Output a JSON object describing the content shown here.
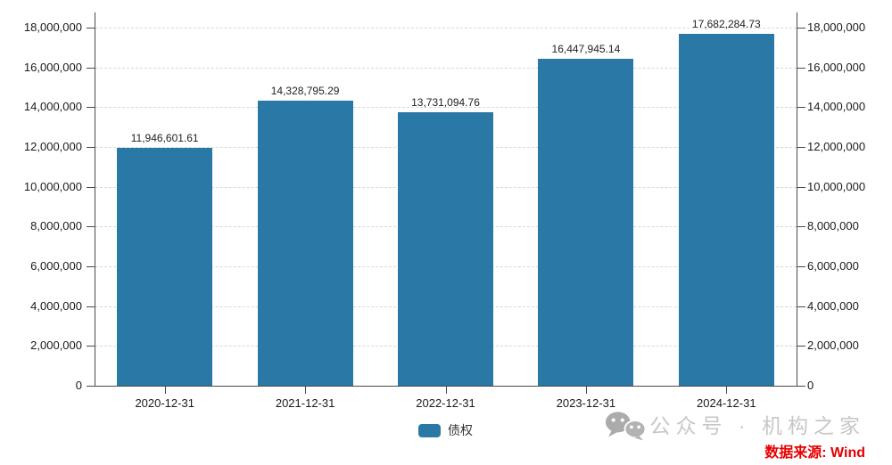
{
  "chart_data": {
    "type": "bar",
    "title": "",
    "categories": [
      "2020-12-31",
      "2021-12-31",
      "2022-12-31",
      "2023-12-31",
      "2024-12-31"
    ],
    "series": [
      {
        "name": "债权",
        "values": [
          11946601.61,
          14328795.29,
          13731094.76,
          16447945.14,
          17682284.73
        ],
        "value_labels": [
          "11,946,601.61",
          "14,328,795.29",
          "13,731,094.76",
          "16,447,945.14",
          "17,682,284.73"
        ],
        "color": "#2A78A5"
      }
    ],
    "xlabel": "",
    "ylabel": "",
    "ylim": [
      0,
      18000000
    ],
    "y_ticks": [
      0,
      2000000,
      4000000,
      6000000,
      8000000,
      10000000,
      12000000,
      14000000,
      16000000,
      18000000
    ],
    "y_tick_labels": [
      "0",
      "2,000,000",
      "4,000,000",
      "6,000,000",
      "8,000,000",
      "10,000,000",
      "12,000,000",
      "14,000,000",
      "16,000,000",
      "18,000,000"
    ],
    "grid": "horizontal-dashed",
    "dual_y_axis": true,
    "legend_position": "bottom-center"
  },
  "legend": {
    "label": "债权",
    "swatch_color": "#2A78A5"
  },
  "footer": {
    "wechat_icon": "wechat-logo",
    "brand_text": "公众号 · 机构之家",
    "brand_color": "#c7c7c7",
    "source_text": "数据来源: Wind",
    "source_color": "#e60000"
  }
}
